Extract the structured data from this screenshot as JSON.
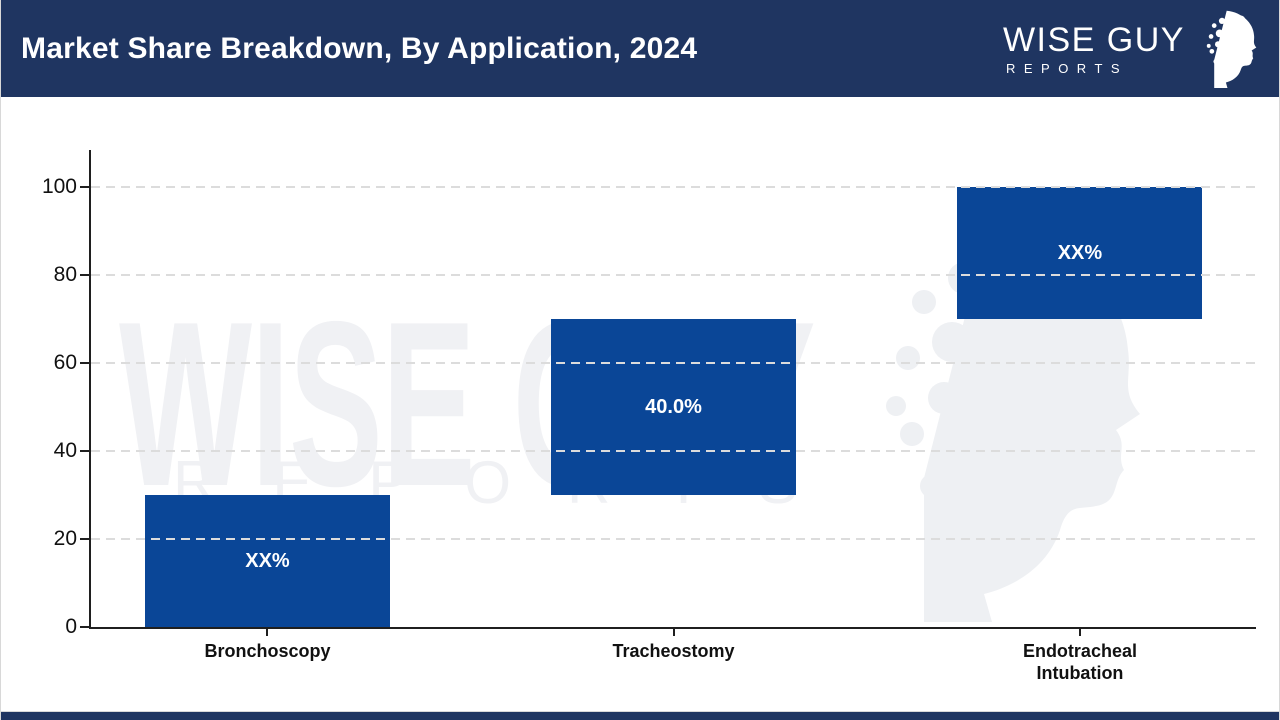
{
  "header": {
    "title": "Market Share Breakdown, By Application, 2024",
    "logo": {
      "line1": "WISE GUY",
      "line2": "REPORTS"
    }
  },
  "watermark": {
    "line1": "WISE GUY",
    "line2": "REPORTS"
  },
  "chart_data": {
    "type": "bar",
    "subtype": "floating-waterfall",
    "title": "Market Share Breakdown, By Application, 2024",
    "categories": [
      "Bronchoscopy",
      "Tracheostomy",
      "Endotracheal Intubation"
    ],
    "bars": [
      {
        "category": "Bronchoscopy",
        "start": 0,
        "end": 30,
        "label": "XX%"
      },
      {
        "category": "Tracheostomy",
        "start": 30,
        "end": 70,
        "label": "40.0%"
      },
      {
        "category": "Endotracheal Intubation",
        "start": 70,
        "end": 100,
        "label": "XX%"
      }
    ],
    "yticks": [
      0,
      20,
      40,
      60,
      80,
      100
    ],
    "ylim": [
      0,
      108
    ],
    "xlabel": "",
    "ylabel": "",
    "grid": "dashed-horizontal",
    "legend": "none",
    "bar_color": "#0a4697"
  },
  "colors": {
    "header_navy": "#1f3561",
    "bar_blue": "#0a4697",
    "grid_gray": "#dcdcdc",
    "axis_black": "#1f1f1f",
    "watermark_gray": "#f0f1f4"
  }
}
